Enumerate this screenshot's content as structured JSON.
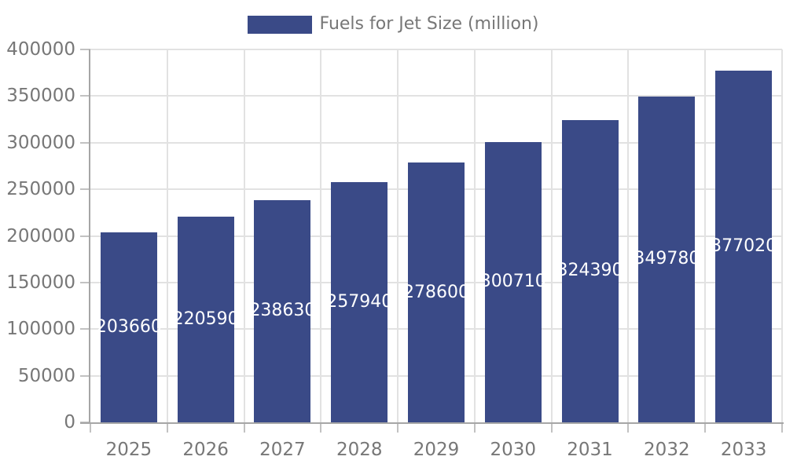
{
  "page": {
    "background": "#ffffff"
  },
  "colors": {
    "bar": "#3a4a87",
    "bar_label": "#ffffff",
    "grid": "#e2e2e2",
    "axis": "#a6a6a6",
    "tick": "#c2c2c2",
    "text": "#777777"
  },
  "chart_data": {
    "type": "bar",
    "title": "",
    "legend_label": "Fuels for Jet Size (million)",
    "legend_position": "top-center",
    "xlabel": "",
    "ylabel": "",
    "categories": [
      "2025",
      "2026",
      "2027",
      "2028",
      "2029",
      "2030",
      "2031",
      "2032",
      "2033"
    ],
    "values": [
      203660,
      220590,
      238630,
      257940,
      278600,
      300710,
      324390,
      349780,
      377020
    ],
    "ylim": [
      0,
      400000
    ],
    "yticks": [
      0,
      50000,
      100000,
      150000,
      200000,
      250000,
      300000,
      350000,
      400000
    ],
    "grid": "on",
    "value_labels": "inside-center"
  }
}
